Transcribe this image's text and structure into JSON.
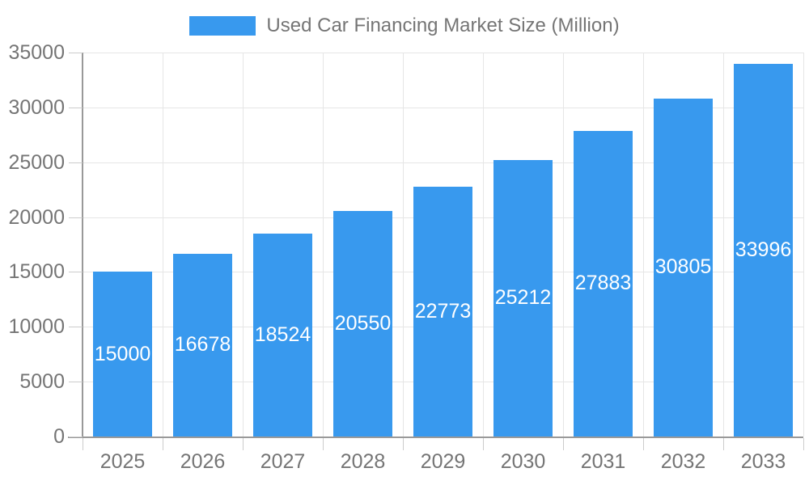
{
  "legend": {
    "label": "Used Car Financing Market Size (Million)",
    "swatch_color": "#3899ee"
  },
  "colors": {
    "bar": "#3899ee",
    "value_label": "#ffffff",
    "axis": "#999999",
    "gridline": "#e6e6e6",
    "tick": "#cccccc",
    "text": "#757575"
  },
  "chart_data": {
    "type": "bar",
    "title": "Used Car Financing Market Size (Million)",
    "categories": [
      "2025",
      "2026",
      "2027",
      "2028",
      "2029",
      "2030",
      "2031",
      "2032",
      "2033"
    ],
    "series": [
      {
        "name": "Used Car Financing Market Size (Million)",
        "values": [
          15000,
          16678,
          18524,
          20550,
          22773,
          25212,
          27883,
          30805,
          33996
        ]
      }
    ],
    "value_labels_shown": true,
    "value_label_position": "inside-center",
    "xlabel": "",
    "ylabel": "",
    "ylim": [
      0,
      35000
    ],
    "ytick_step": 5000,
    "yticks": [
      0,
      5000,
      10000,
      15000,
      20000,
      25000,
      30000,
      35000
    ],
    "grid": true,
    "legend_position": "top-center"
  }
}
